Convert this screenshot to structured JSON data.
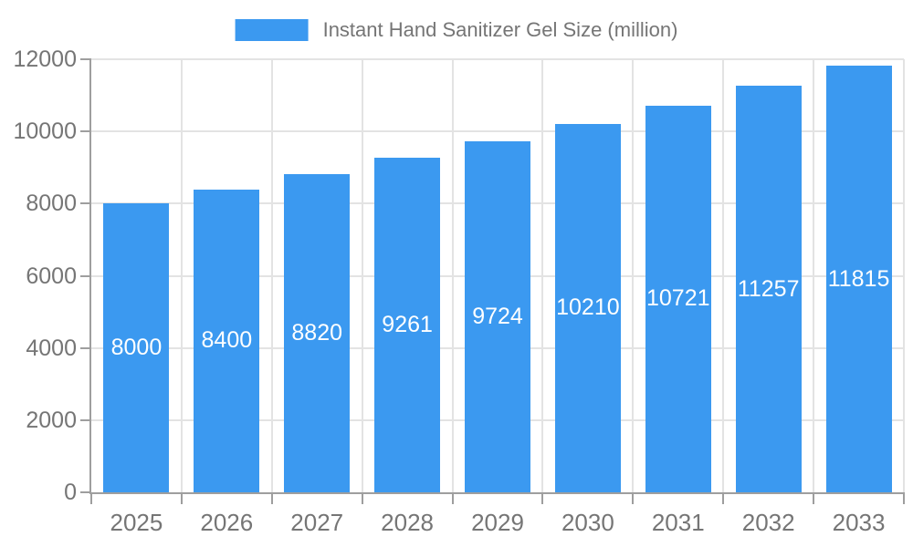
{
  "legend": {
    "label": "Instant Hand Sanitizer Gel Size (million)"
  },
  "chart_data": {
    "type": "bar",
    "title": "Instant Hand Sanitizer Gel Size (million)",
    "categories": [
      "2025",
      "2026",
      "2027",
      "2028",
      "2029",
      "2030",
      "2031",
      "2032",
      "2033"
    ],
    "values": [
      8000,
      8400,
      8820,
      9261,
      9724,
      10210,
      10721,
      11257,
      11815
    ],
    "bar_labels": [
      "8000",
      "8400",
      "8820",
      "9261",
      "9724",
      "10210",
      "10721",
      "11257",
      "11815"
    ],
    "xlabel": "",
    "ylabel": "",
    "ylim": [
      0,
      12000
    ],
    "yticks": [
      0,
      2000,
      4000,
      6000,
      8000,
      10000,
      12000
    ],
    "ytick_labels": [
      "0",
      "2000",
      "4000",
      "6000",
      "8000",
      "10000",
      "12000"
    ],
    "grid": true,
    "legend_position": "top-center",
    "value_label_position": "inside-center",
    "colors": {
      "bar": "#3B99F0",
      "axis_text": "#757575",
      "bar_label_text": "#FFFFFF",
      "grid_line": "#E3E3E3",
      "axis_line": "#9E9E9E",
      "background": "#FFFFFF"
    }
  }
}
